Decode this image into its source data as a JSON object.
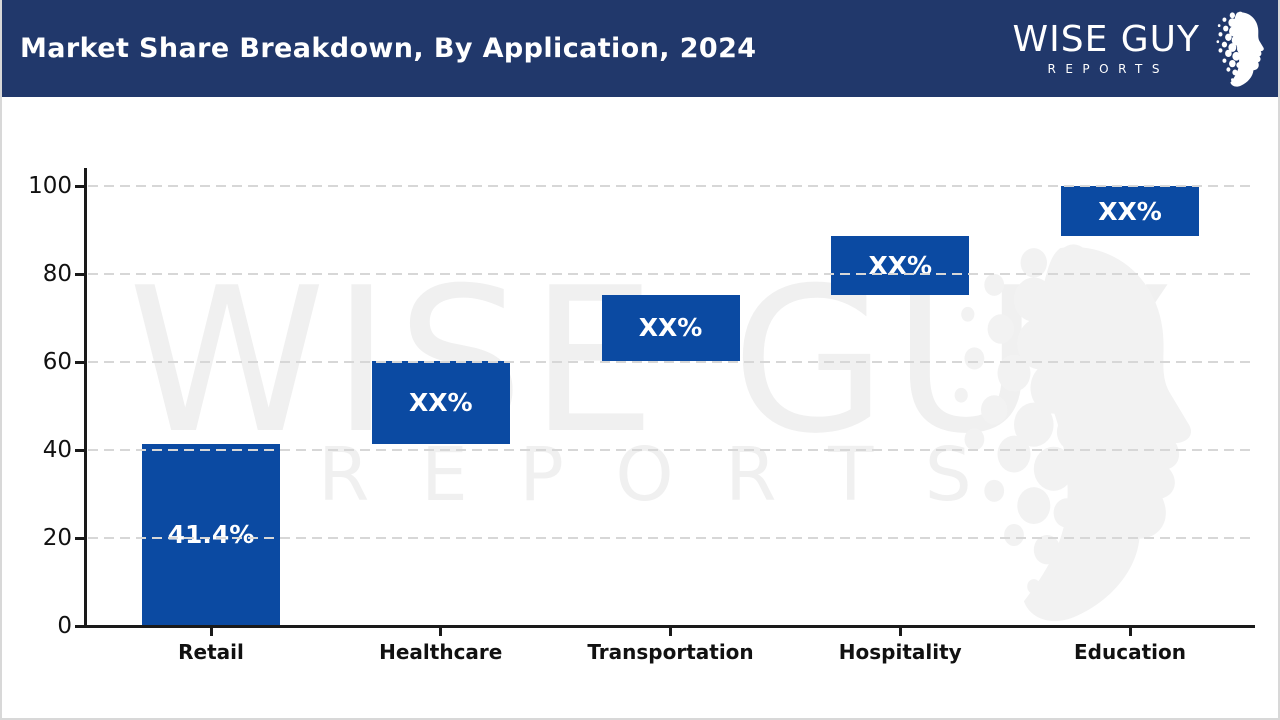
{
  "header": {
    "title": "Market Share Breakdown, By Application, 2024",
    "logo": {
      "wordmark": "WISE GUY",
      "subtext": "REPORTS"
    }
  },
  "watermark": {
    "wordmark": "WISE GUY",
    "subtext": "R E P O R T S"
  },
  "colors": {
    "header_bg": "#21386B",
    "bar": "#0B4AA2",
    "axis": "#1a1a1a",
    "grid": "#d7d7d7",
    "watermark": "#f0f0f0",
    "watermark_head": "#f2f2f2",
    "frame_border": "#d8d8d8",
    "value_label": "#ffffff"
  },
  "chart_data": {
    "type": "bar",
    "subtype": "waterfall",
    "title": "Market Share Breakdown, By Application, 2024",
    "categories": [
      "Retail",
      "Healthcare",
      "Transportation",
      "Hospitality",
      "Education"
    ],
    "bars": [
      {
        "category": "Retail",
        "start": 0,
        "end": 41.4,
        "label": "41.4%"
      },
      {
        "category": "Healthcare",
        "start": 41.4,
        "end": 60.2,
        "label": "XX%"
      },
      {
        "category": "Transportation",
        "start": 60.2,
        "end": 75.3,
        "label": "XX%"
      },
      {
        "category": "Hospitality",
        "start": 75.3,
        "end": 88.6,
        "label": "XX%"
      },
      {
        "category": "Education",
        "start": 88.6,
        "end": 100,
        "label": "XX%"
      }
    ],
    "xlabel": "",
    "ylabel": "",
    "ylim": [
      0,
      105
    ],
    "yticks": [
      0,
      20,
      40,
      60,
      80,
      100
    ],
    "grid": true,
    "grid_style": "dashed",
    "legend": false,
    "bar_color": "#0B4AA2"
  }
}
